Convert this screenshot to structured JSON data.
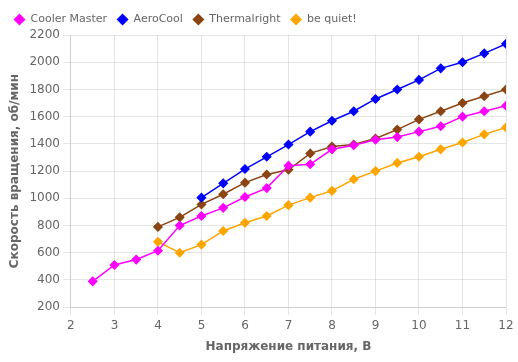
{
  "chart_data": {
    "type": "line",
    "xlabel": "Напряжение питания, В",
    "ylabel": "Скорость вращения, об/мин",
    "xlim": [
      2,
      12
    ],
    "ylim": [
      200,
      2200
    ],
    "xticks": [
      2,
      3,
      4,
      5,
      6,
      7,
      8,
      9,
      10,
      11,
      12
    ],
    "yticks": [
      200,
      400,
      600,
      800,
      1000,
      1200,
      1400,
      1600,
      1800,
      2000,
      2200
    ],
    "grid": true,
    "legend": "upper left",
    "marker": "diamond",
    "series": [
      {
        "name": "Cooler Master",
        "color": "#FF00FF",
        "x": [
          2.5,
          3.0,
          3.5,
          4.0,
          4.5,
          5.0,
          5.5,
          6.0,
          6.5,
          7.0,
          7.5,
          8.0,
          8.5,
          9.0,
          9.5,
          10.0,
          10.5,
          11.0,
          11.5,
          12.0
        ],
        "values": [
          390,
          510,
          550,
          615,
          800,
          870,
          930,
          1010,
          1075,
          1240,
          1250,
          1360,
          1390,
          1430,
          1450,
          1490,
          1530,
          1600,
          1640,
          1680
        ]
      },
      {
        "name": "AeroCool",
        "color": "#0000FF",
        "x": [
          5.0,
          5.5,
          6.0,
          6.5,
          7.0,
          7.5,
          8.0,
          8.5,
          9.0,
          9.5,
          10.0,
          10.5,
          11.0,
          11.5,
          12.0
        ],
        "values": [
          1005,
          1110,
          1215,
          1305,
          1395,
          1490,
          1570,
          1640,
          1730,
          1800,
          1870,
          1955,
          2000,
          2065,
          2135
        ]
      },
      {
        "name": "Thermalright",
        "color": "#8B4513",
        "x": [
          4.0,
          4.5,
          5.0,
          5.5,
          6.0,
          6.5,
          7.0,
          7.5,
          8.0,
          8.5,
          9.0,
          9.5,
          10.0,
          10.5,
          11.0,
          11.5,
          12.0
        ],
        "values": [
          790,
          860,
          955,
          1030,
          1115,
          1175,
          1210,
          1330,
          1380,
          1395,
          1440,
          1505,
          1580,
          1640,
          1700,
          1750,
          1800
        ]
      },
      {
        "name": "be quiet!",
        "color": "#FFA500",
        "x": [
          4.0,
          4.5,
          5.0,
          5.5,
          6.0,
          6.5,
          7.0,
          7.5,
          8.0,
          8.5,
          9.0,
          9.5,
          10.0,
          10.5,
          11.0,
          11.5,
          12.0
        ],
        "values": [
          680,
          600,
          660,
          760,
          820,
          870,
          950,
          1005,
          1055,
          1140,
          1200,
          1260,
          1305,
          1360,
          1410,
          1470,
          1520
        ]
      }
    ]
  }
}
